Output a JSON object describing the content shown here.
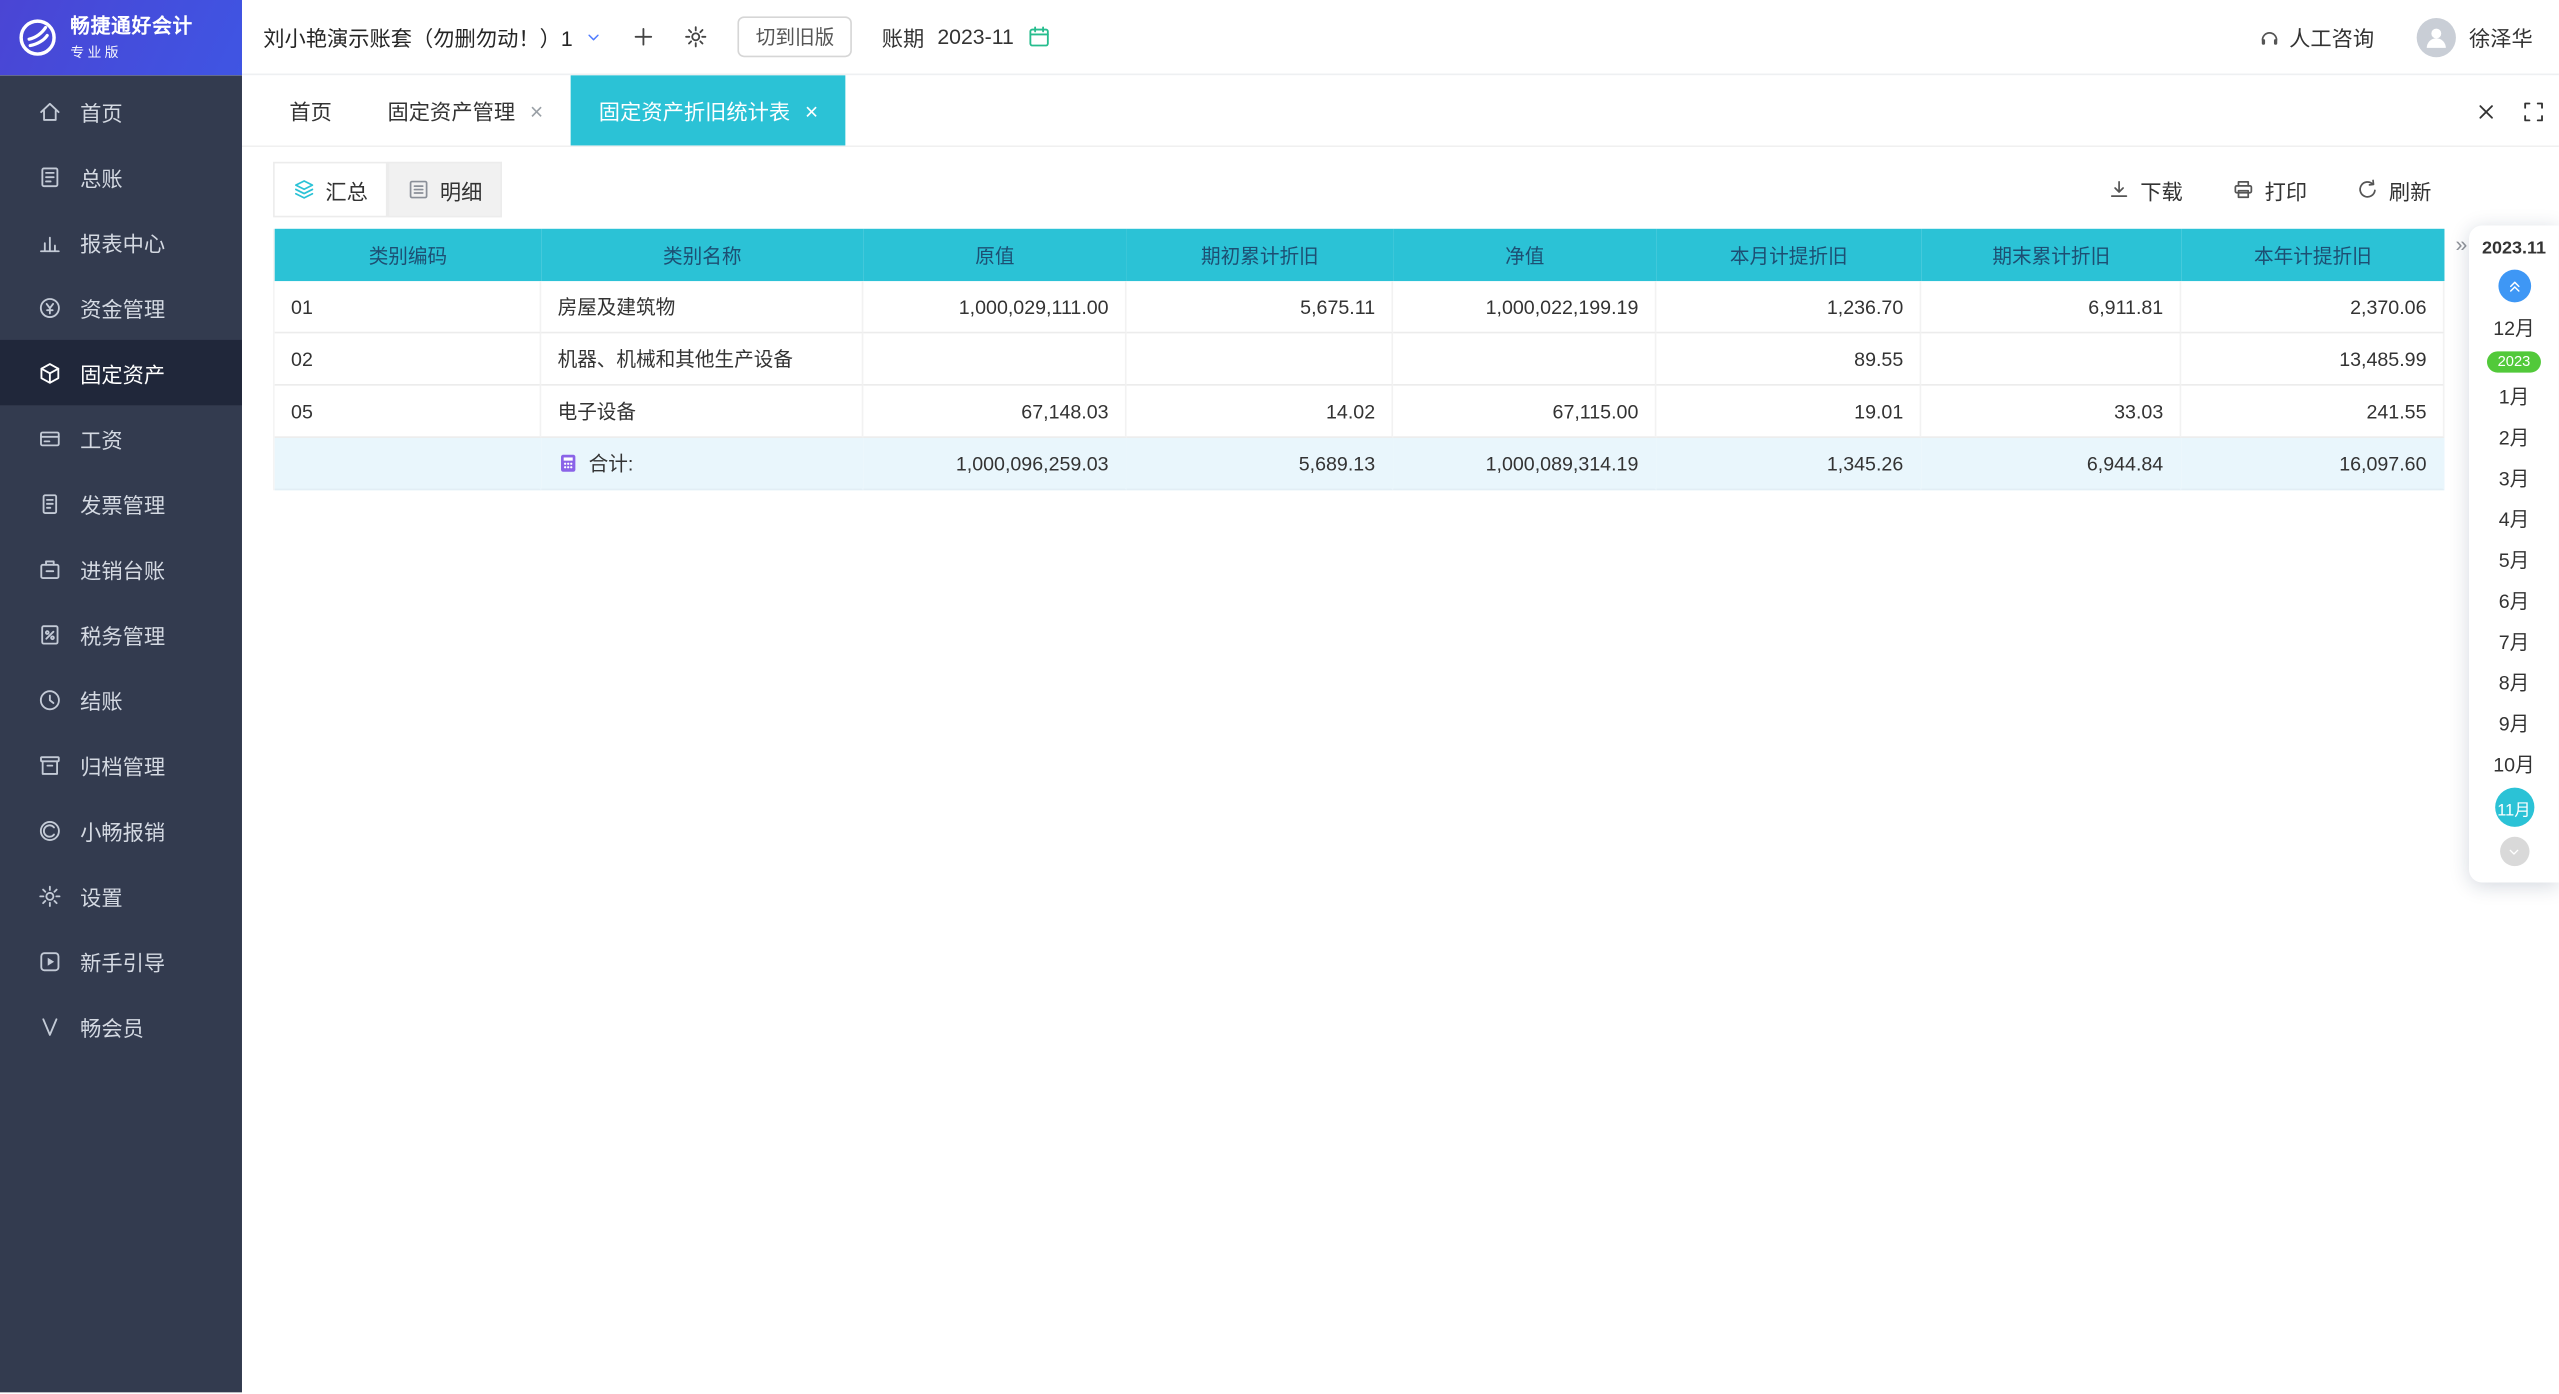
{
  "app": {
    "brand_name": "畅捷通好会计",
    "brand_edition": "专业版",
    "account_set": "刘小艳演示账套（勿删勿动！）1",
    "switch_old_label": "切到旧版",
    "period_label": "账期",
    "period_value": "2023-11",
    "support_label": "人工咨询",
    "user_name": "徐泽华"
  },
  "sidebar": {
    "items": [
      {
        "label": "首页",
        "icon": "home",
        "active": false
      },
      {
        "label": "总账",
        "icon": "ledger",
        "active": false
      },
      {
        "label": "报表中心",
        "icon": "report",
        "active": false
      },
      {
        "label": "资金管理",
        "icon": "fund",
        "active": false
      },
      {
        "label": "固定资产",
        "icon": "asset",
        "active": true
      },
      {
        "label": "工资",
        "icon": "salary",
        "active": false
      },
      {
        "label": "发票管理",
        "icon": "invoice",
        "active": false
      },
      {
        "label": "进销台账",
        "icon": "inout",
        "active": false
      },
      {
        "label": "税务管理",
        "icon": "tax",
        "active": false
      },
      {
        "label": "结账",
        "icon": "closing",
        "active": false
      },
      {
        "label": "归档管理",
        "icon": "archive",
        "active": false
      },
      {
        "label": "小畅报销",
        "icon": "reimburse",
        "active": false
      },
      {
        "label": "设置",
        "icon": "gear",
        "active": false
      },
      {
        "label": "新手引导",
        "icon": "guide",
        "active": false
      },
      {
        "label": "畅会员",
        "icon": "member",
        "active": false
      }
    ]
  },
  "tabs": [
    {
      "label": "首页",
      "closable": false,
      "active": false
    },
    {
      "label": "固定资产管理",
      "closable": true,
      "active": false
    },
    {
      "label": "固定资产折旧统计表",
      "closable": true,
      "active": true
    }
  ],
  "toolbar": {
    "view_summary": "汇总",
    "view_detail": "明细",
    "download": "下载",
    "print": "打印",
    "refresh": "刷新"
  },
  "table": {
    "columns": [
      "类别编码",
      "类别名称",
      "原值",
      "期初累计折旧",
      "净值",
      "本月计提折旧",
      "期末累计折旧",
      "本年计提折旧"
    ],
    "rows": [
      [
        "01",
        "房屋及建筑物",
        "1,000,029,111.00",
        "5,675.11",
        "1,000,022,199.19",
        "1,236.70",
        "6,911.81",
        "2,370.06"
      ],
      [
        "02",
        "机器、机械和其他生产设备",
        "",
        "",
        "",
        "89.55",
        "",
        "13,485.99"
      ],
      [
        "05",
        "电子设备",
        "67,148.03",
        "14.02",
        "67,115.00",
        "19.01",
        "33.03",
        "241.55"
      ]
    ],
    "total_label": "合计:",
    "total_row": [
      "1,000,096,259.03",
      "5,689.13",
      "1,000,089,314.19",
      "1,345.26",
      "6,944.84",
      "16,097.60"
    ]
  },
  "period_panel": {
    "current": "2023.11",
    "year_badge": "2023",
    "months": [
      "12月",
      "1月",
      "2月",
      "3月",
      "4月",
      "5月",
      "6月",
      "7月",
      "8月",
      "9月",
      "10月",
      "11月"
    ],
    "selected_month": "11月",
    "collapse_glyph": "»"
  },
  "colors": {
    "accent": "#2bc2d6",
    "brand_start": "#4a45d4",
    "brand_end": "#3f55e3",
    "sidebar_bg": "#333b4f",
    "sidebar_active_bg": "#20273a",
    "total_row_bg": "#e9f6fc",
    "badge_green": "#52c93a",
    "scroll_blue": "#3e97f5",
    "calendar_green": "#26bd8e",
    "link_blue": "#4f7bff",
    "calc_purple": "#8a63e8",
    "table_header_text": "#1d4f73"
  }
}
